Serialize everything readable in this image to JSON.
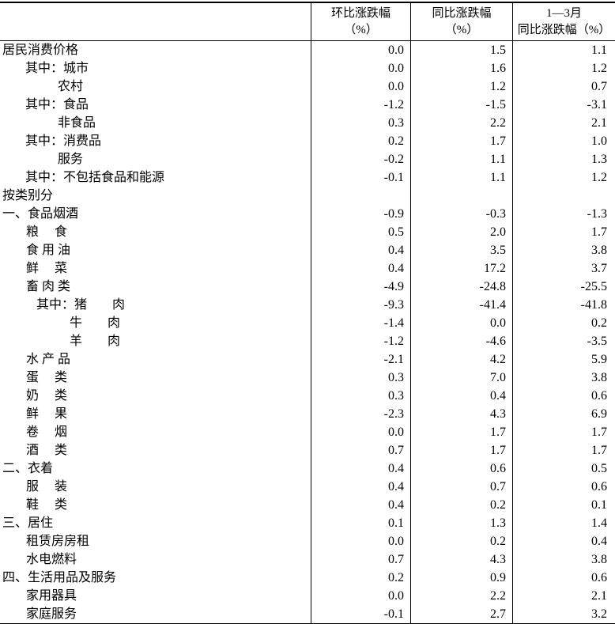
{
  "colors": {
    "background": "#ffffff",
    "text": "#000000",
    "grid_line": "#000000"
  },
  "chart_data": {
    "type": "table",
    "title": "",
    "columns": [
      "",
      "环比涨跌幅（%）",
      "同比涨跌幅（%）",
      "1—3月同比涨跌幅（%）"
    ],
    "header": {
      "col1": "",
      "col2": {
        "line1": "环比涨跌幅",
        "line2": "（%）"
      },
      "col3": {
        "line1": "同比涨跌幅",
        "line2": "（%）"
      },
      "col4": {
        "line1": "1—3月",
        "line2": "同比涨跌幅（%）"
      }
    },
    "rows": [
      {
        "label": "居民消费价格",
        "indent": 3,
        "values": [
          "0.0",
          "1.5",
          "1.1"
        ]
      },
      {
        "label": "其中：城市",
        "indent": 32,
        "values": [
          "0.0",
          "1.6",
          "1.2"
        ]
      },
      {
        "label": "农村",
        "indent": 73,
        "values": [
          "0.0",
          "1.2",
          "0.7"
        ]
      },
      {
        "label": "其中：食品",
        "indent": 32,
        "values": [
          "-1.2",
          "-1.5",
          "-3.1"
        ]
      },
      {
        "label": "非食品",
        "indent": 73,
        "values": [
          "0.3",
          "2.2",
          "2.1"
        ]
      },
      {
        "label": "其中：消费品",
        "indent": 32,
        "values": [
          "0.2",
          "1.7",
          "1.0"
        ]
      },
      {
        "label": "服务",
        "indent": 73,
        "values": [
          "-0.2",
          "1.1",
          "1.3"
        ]
      },
      {
        "label": "其中：不包括食品和能源",
        "indent": 32,
        "values": [
          "-0.1",
          "1.1",
          "1.2"
        ]
      },
      {
        "label": "按类别分",
        "indent": 3,
        "values": [
          "",
          "",
          ""
        ]
      },
      {
        "label": "一、食品烟酒",
        "indent": 3,
        "values": [
          "-0.9",
          "-0.3",
          "-1.3"
        ]
      },
      {
        "label": "粮　 食",
        "indent": 33,
        "values": [
          "0.5",
          "2.0",
          "1.7"
        ]
      },
      {
        "label": "食 用 油",
        "indent": 33,
        "values": [
          "0.4",
          "3.5",
          "3.8"
        ]
      },
      {
        "label": "鲜　 菜",
        "indent": 33,
        "values": [
          "0.4",
          "17.2",
          "3.7"
        ]
      },
      {
        "label": "畜 肉 类",
        "indent": 33,
        "values": [
          "-4.9",
          "-24.8",
          "-25.5"
        ]
      },
      {
        "label": "其中：猪　　肉",
        "indent": 46,
        "values": [
          "-9.3",
          "-41.4",
          "-41.8"
        ]
      },
      {
        "label": "牛　　肉",
        "indent": 88,
        "values": [
          "-1.4",
          "0.0",
          "0.2"
        ]
      },
      {
        "label": "羊　　肉",
        "indent": 88,
        "values": [
          "-1.2",
          "-4.6",
          "-3.5"
        ]
      },
      {
        "label": "水 产 品",
        "indent": 33,
        "values": [
          "-2.1",
          "4.2",
          "5.9"
        ]
      },
      {
        "label": "蛋　 类",
        "indent": 33,
        "values": [
          "0.3",
          "7.0",
          "3.8"
        ]
      },
      {
        "label": "奶　 类",
        "indent": 33,
        "values": [
          "0.3",
          "0.4",
          "0.6"
        ]
      },
      {
        "label": "鲜　 果",
        "indent": 33,
        "values": [
          "-2.3",
          "4.3",
          "6.9"
        ]
      },
      {
        "label": "卷　 烟",
        "indent": 33,
        "values": [
          "0.0",
          "1.7",
          "1.7"
        ]
      },
      {
        "label": "酒　 类",
        "indent": 33,
        "values": [
          "0.7",
          "1.7",
          "1.7"
        ]
      },
      {
        "label": "二、衣着",
        "indent": 3,
        "values": [
          "0.4",
          "0.6",
          "0.5"
        ]
      },
      {
        "label": "服　 装",
        "indent": 33,
        "values": [
          "0.4",
          "0.7",
          "0.6"
        ]
      },
      {
        "label": "鞋　 类",
        "indent": 33,
        "values": [
          "0.4",
          "0.2",
          "0.1"
        ]
      },
      {
        "label": "三、居住",
        "indent": 3,
        "values": [
          "0.1",
          "1.3",
          "1.4"
        ]
      },
      {
        "label": "租赁房房租",
        "indent": 33,
        "values": [
          "0.0",
          "0.2",
          "0.4"
        ]
      },
      {
        "label": "水电燃料",
        "indent": 33,
        "values": [
          "0.7",
          "4.3",
          "3.8"
        ]
      },
      {
        "label": "四、生活用品及服务",
        "indent": 3,
        "values": [
          "0.2",
          "0.9",
          "0.6"
        ]
      },
      {
        "label": "家用器具",
        "indent": 33,
        "values": [
          "0.0",
          "2.2",
          "2.1"
        ]
      },
      {
        "label": "家庭服务",
        "indent": 33,
        "values": [
          "-0.1",
          "2.7",
          "3.2"
        ]
      }
    ]
  }
}
